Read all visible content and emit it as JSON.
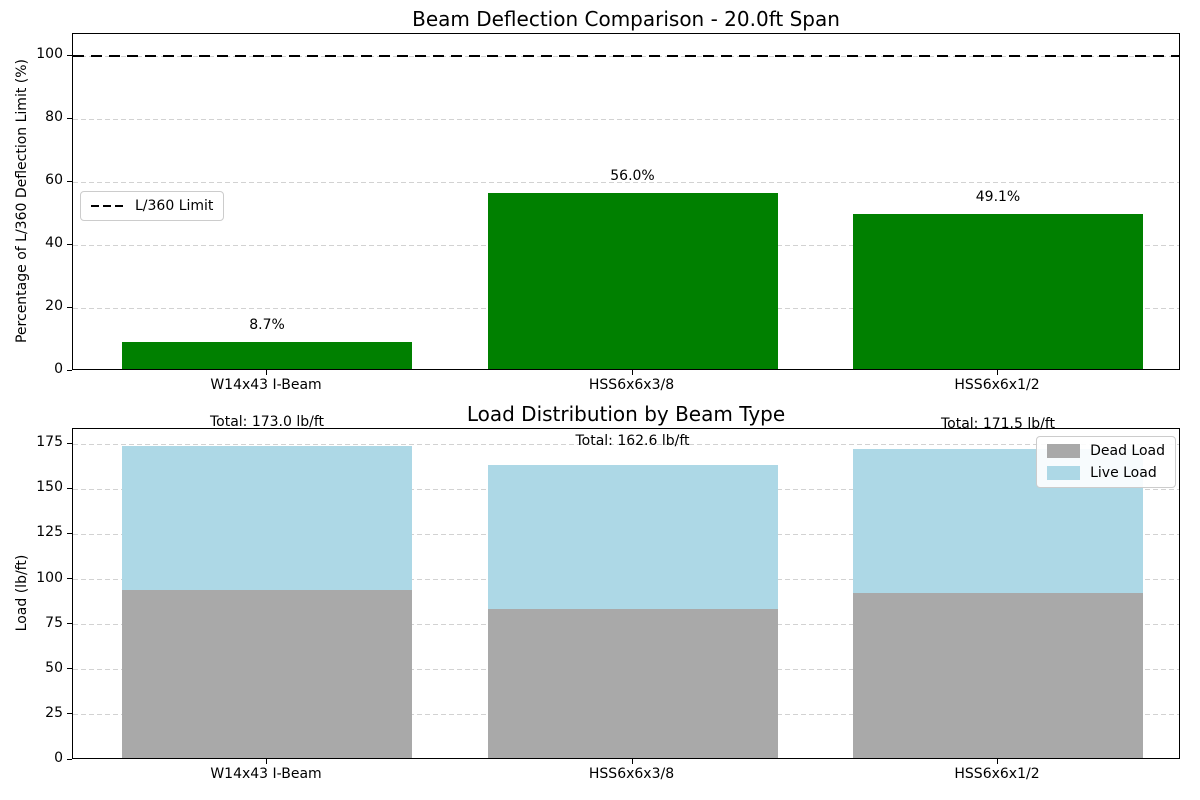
{
  "page": {
    "background": "#ffffff"
  },
  "chart_data": [
    {
      "type": "bar",
      "title": "Beam Deflection Comparison - 20.0ft Span",
      "ylabel": "Percentage of L/360 Deflection Limit (%)",
      "xlabel": "",
      "categories": [
        "W14x43 I-Beam",
        "HSS6x6x3/8",
        "HSS6x6x1/2"
      ],
      "values": [
        8.7,
        56.0,
        49.1
      ],
      "bar_labels": [
        "8.7%",
        "56.0%",
        "49.1%"
      ],
      "bar_color": "#008000",
      "ylim": [
        0,
        107
      ],
      "yticks": [
        0,
        20,
        40,
        60,
        80,
        100
      ],
      "grid": "horizontal dashed",
      "reference_line": {
        "value": 100,
        "color": "#000000",
        "style": "dashed",
        "label": "L/360 Limit"
      },
      "legend": {
        "position": "center-left",
        "entries": [
          {
            "label": "L/360 Limit",
            "swatch": "dashed-line",
            "color": "#000000"
          }
        ]
      }
    },
    {
      "type": "stacked-bar",
      "title": "Load Distribution by Beam Type",
      "ylabel": "Load (lb/ft)",
      "xlabel": "",
      "categories": [
        "W14x43 I-Beam",
        "HSS6x6x3/8",
        "HSS6x6x1/2"
      ],
      "series": [
        {
          "name": "Dead Load",
          "color": "#a9a9a9",
          "values": [
            93.0,
            82.6,
            91.5
          ]
        },
        {
          "name": "Live Load",
          "color": "#add8e6",
          "values": [
            80.0,
            80.0,
            80.0
          ]
        }
      ],
      "totals": [
        173.0,
        162.6,
        171.5
      ],
      "total_labels": [
        "Total: 173.0 lb/ft",
        "Total: 162.6 lb/ft",
        "Total: 171.5 lb/ft"
      ],
      "ylim": [
        0,
        183.4
      ],
      "yticks": [
        0,
        25,
        50,
        75,
        100,
        125,
        150,
        175
      ],
      "grid": "horizontal dashed",
      "legend": {
        "position": "top-right",
        "entries": [
          {
            "label": "Dead Load",
            "swatch": "patch",
            "color": "#a9a9a9"
          },
          {
            "label": "Live Load",
            "swatch": "patch",
            "color": "#add8e6"
          }
        ]
      }
    }
  ]
}
